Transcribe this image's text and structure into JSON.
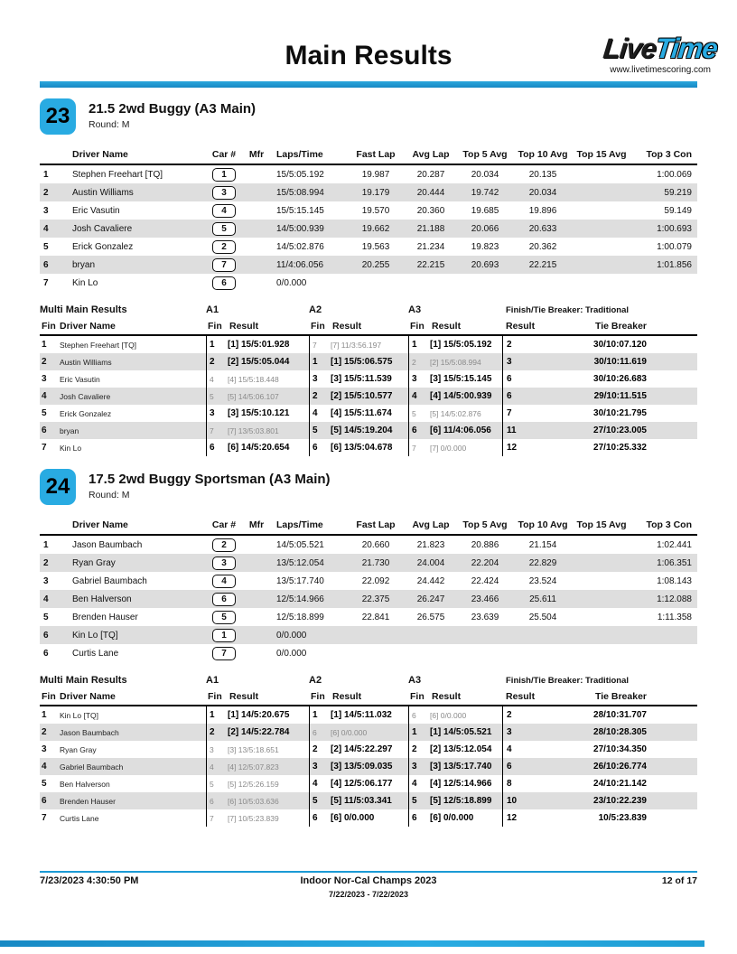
{
  "header": {
    "title": "Main Results",
    "logo_live": "Live",
    "logo_time": "Time",
    "logo_url": "www.livetimescoring.com"
  },
  "main_headers": {
    "driver": "Driver Name",
    "car": "Car #",
    "mfr": "Mfr",
    "laps": "Laps/Time",
    "fast": "Fast Lap",
    "avg": "Avg Lap",
    "top5": "Top 5 Avg",
    "top10": "Top 10 Avg",
    "top15": "Top 15 Avg",
    "top3": "Top 3 Con"
  },
  "multi_headers": {
    "title": "Multi Main Results",
    "a1": "A1",
    "a2": "A2",
    "a3": "A3",
    "tie_label": "Finish/Tie Breaker: Traditional",
    "fin": "Fin",
    "driver": "Driver Name",
    "result": "Result",
    "tie": "Tie Breaker"
  },
  "colors": {
    "accent_bar": "#1B9AD5",
    "race_badge": "#29ABE2",
    "row_stripe": "#DEDEDE"
  },
  "races": [
    {
      "number": "23",
      "title": "21.5 2wd Buggy (A3 Main)",
      "round": "Round: M",
      "main_rows": [
        {
          "pos": "1",
          "driver": "Stephen Freehart [TQ]",
          "car": "1",
          "mfr": "",
          "laps": "15/5:05.192",
          "fast": "19.987",
          "avg": "20.287",
          "top5": "20.034",
          "top10": "20.135",
          "top15": "",
          "top3": "1:00.069"
        },
        {
          "pos": "2",
          "driver": "Austin Williams",
          "car": "3",
          "mfr": "",
          "laps": "15/5:08.994",
          "fast": "19.179",
          "avg": "20.444",
          "top5": "19.742",
          "top10": "20.034",
          "top15": "",
          "top3": "59.219"
        },
        {
          "pos": "3",
          "driver": "Eric Vasutin",
          "car": "4",
          "mfr": "",
          "laps": "15/5:15.145",
          "fast": "19.570",
          "avg": "20.360",
          "top5": "19.685",
          "top10": "19.896",
          "top15": "",
          "top3": "59.149"
        },
        {
          "pos": "4",
          "driver": "Josh Cavaliere",
          "car": "5",
          "mfr": "",
          "laps": "14/5:00.939",
          "fast": "19.662",
          "avg": "21.188",
          "top5": "20.066",
          "top10": "20.633",
          "top15": "",
          "top3": "1:00.693"
        },
        {
          "pos": "5",
          "driver": "Erick Gonzalez",
          "car": "2",
          "mfr": "",
          "laps": "14/5:02.876",
          "fast": "19.563",
          "avg": "21.234",
          "top5": "19.823",
          "top10": "20.362",
          "top15": "",
          "top3": "1:00.079"
        },
        {
          "pos": "6",
          "driver": "bryan",
          "car": "7",
          "mfr": "",
          "laps": "11/4:06.056",
          "fast": "20.255",
          "avg": "22.215",
          "top5": "20.693",
          "top10": "22.215",
          "top15": "",
          "top3": "1:01.856"
        },
        {
          "pos": "7",
          "driver": "Kin Lo",
          "car": "6",
          "mfr": "",
          "laps": "0/0.000",
          "fast": "",
          "avg": "",
          "top5": "",
          "top10": "",
          "top15": "",
          "top3": ""
        }
      ],
      "multi_rows": [
        {
          "fin": "1",
          "driver": "Stephen Freehart [TQ]",
          "a": [
            {
              "fin": "1",
              "result": "[1] 15/5:01.928",
              "counted": true
            },
            {
              "fin": "7",
              "result": "[7] 11/3:56.197",
              "counted": false
            },
            {
              "fin": "1",
              "result": "[1] 15/5:05.192",
              "counted": true
            }
          ],
          "result": "2",
          "tie": "30/10:07.120"
        },
        {
          "fin": "2",
          "driver": "Austin Williams",
          "a": [
            {
              "fin": "2",
              "result": "[2] 15/5:05.044",
              "counted": true
            },
            {
              "fin": "1",
              "result": "[1] 15/5:06.575",
              "counted": true
            },
            {
              "fin": "2",
              "result": "[2] 15/5:08.994",
              "counted": false
            }
          ],
          "result": "3",
          "tie": "30/10:11.619"
        },
        {
          "fin": "3",
          "driver": "Eric Vasutin",
          "a": [
            {
              "fin": "4",
              "result": "[4] 15/5:18.448",
              "counted": false
            },
            {
              "fin": "3",
              "result": "[3] 15/5:11.539",
              "counted": true
            },
            {
              "fin": "3",
              "result": "[3] 15/5:15.145",
              "counted": true
            }
          ],
          "result": "6",
          "tie": "30/10:26.683"
        },
        {
          "fin": "4",
          "driver": "Josh Cavaliere",
          "a": [
            {
              "fin": "5",
              "result": "[5] 14/5:06.107",
              "counted": false
            },
            {
              "fin": "2",
              "result": "[2] 15/5:10.577",
              "counted": true
            },
            {
              "fin": "4",
              "result": "[4] 14/5:00.939",
              "counted": true
            }
          ],
          "result": "6",
          "tie": "29/10:11.515"
        },
        {
          "fin": "5",
          "driver": "Erick Gonzalez",
          "a": [
            {
              "fin": "3",
              "result": "[3] 15/5:10.121",
              "counted": true
            },
            {
              "fin": "4",
              "result": "[4] 15/5:11.674",
              "counted": true
            },
            {
              "fin": "5",
              "result": "[5] 14/5:02.876",
              "counted": false
            }
          ],
          "result": "7",
          "tie": "30/10:21.795"
        },
        {
          "fin": "6",
          "driver": "bryan",
          "a": [
            {
              "fin": "7",
              "result": "[7] 13/5:03.801",
              "counted": false
            },
            {
              "fin": "5",
              "result": "[5] 14/5:19.204",
              "counted": true
            },
            {
              "fin": "6",
              "result": "[6] 11/4:06.056",
              "counted": true
            }
          ],
          "result": "11",
          "tie": "27/10:23.005"
        },
        {
          "fin": "7",
          "driver": "Kin Lo",
          "a": [
            {
              "fin": "6",
              "result": "[6] 14/5:20.654",
              "counted": true
            },
            {
              "fin": "6",
              "result": "[6] 13/5:04.678",
              "counted": true
            },
            {
              "fin": "7",
              "result": "[7] 0/0.000",
              "counted": false
            }
          ],
          "result": "12",
          "tie": "27/10:25.332"
        }
      ]
    },
    {
      "number": "24",
      "title": "17.5 2wd Buggy Sportsman  (A3 Main)",
      "round": "Round: M",
      "main_rows": [
        {
          "pos": "1",
          "driver": "Jason Baumbach",
          "car": "2",
          "mfr": "",
          "laps": "14/5:05.521",
          "fast": "20.660",
          "avg": "21.823",
          "top5": "20.886",
          "top10": "21.154",
          "top15": "",
          "top3": "1:02.441"
        },
        {
          "pos": "2",
          "driver": "Ryan Gray",
          "car": "3",
          "mfr": "",
          "laps": "13/5:12.054",
          "fast": "21.730",
          "avg": "24.004",
          "top5": "22.204",
          "top10": "22.829",
          "top15": "",
          "top3": "1:06.351"
        },
        {
          "pos": "3",
          "driver": "Gabriel Baumbach",
          "car": "4",
          "mfr": "",
          "laps": "13/5:17.740",
          "fast": "22.092",
          "avg": "24.442",
          "top5": "22.424",
          "top10": "23.524",
          "top15": "",
          "top3": "1:08.143"
        },
        {
          "pos": "4",
          "driver": "Ben Halverson",
          "car": "6",
          "mfr": "",
          "laps": "12/5:14.966",
          "fast": "22.375",
          "avg": "26.247",
          "top5": "23.466",
          "top10": "25.611",
          "top15": "",
          "top3": "1:12.088"
        },
        {
          "pos": "5",
          "driver": "Brenden Hauser",
          "car": "5",
          "mfr": "",
          "laps": "12/5:18.899",
          "fast": "22.841",
          "avg": "26.575",
          "top5": "23.639",
          "top10": "25.504",
          "top15": "",
          "top3": "1:11.358"
        },
        {
          "pos": "6",
          "driver": "Kin Lo [TQ]",
          "car": "1",
          "mfr": "",
          "laps": "0/0.000",
          "fast": "",
          "avg": "",
          "top5": "",
          "top10": "",
          "top15": "",
          "top3": ""
        },
        {
          "pos": "6",
          "driver": "Curtis Lane",
          "car": "7",
          "mfr": "",
          "laps": "0/0.000",
          "fast": "",
          "avg": "",
          "top5": "",
          "top10": "",
          "top15": "",
          "top3": ""
        }
      ],
      "multi_rows": [
        {
          "fin": "1",
          "driver": "Kin Lo [TQ]",
          "a": [
            {
              "fin": "1",
              "result": "[1] 14/5:20.675",
              "counted": true
            },
            {
              "fin": "1",
              "result": "[1] 14/5:11.032",
              "counted": true
            },
            {
              "fin": "6",
              "result": "[6] 0/0.000",
              "counted": false
            }
          ],
          "result": "2",
          "tie": "28/10:31.707"
        },
        {
          "fin": "2",
          "driver": "Jason Baumbach",
          "a": [
            {
              "fin": "2",
              "result": "[2] 14/5:22.784",
              "counted": true
            },
            {
              "fin": "6",
              "result": "[6] 0/0.000",
              "counted": false
            },
            {
              "fin": "1",
              "result": "[1] 14/5:05.521",
              "counted": true
            }
          ],
          "result": "3",
          "tie": "28/10:28.305"
        },
        {
          "fin": "3",
          "driver": "Ryan Gray",
          "a": [
            {
              "fin": "3",
              "result": "[3] 13/5:18.651",
              "counted": false
            },
            {
              "fin": "2",
              "result": "[2] 14/5:22.297",
              "counted": true
            },
            {
              "fin": "2",
              "result": "[2] 13/5:12.054",
              "counted": true
            }
          ],
          "result": "4",
          "tie": "27/10:34.350"
        },
        {
          "fin": "4",
          "driver": "Gabriel Baumbach",
          "a": [
            {
              "fin": "4",
              "result": "[4] 12/5:07.823",
              "counted": false
            },
            {
              "fin": "3",
              "result": "[3] 13/5:09.035",
              "counted": true
            },
            {
              "fin": "3",
              "result": "[3] 13/5:17.740",
              "counted": true
            }
          ],
          "result": "6",
          "tie": "26/10:26.774"
        },
        {
          "fin": "5",
          "driver": "Ben Halverson",
          "a": [
            {
              "fin": "5",
              "result": "[5] 12/5:26.159",
              "counted": false
            },
            {
              "fin": "4",
              "result": "[4] 12/5:06.177",
              "counted": true
            },
            {
              "fin": "4",
              "result": "[4] 12/5:14.966",
              "counted": true
            }
          ],
          "result": "8",
          "tie": "24/10:21.142"
        },
        {
          "fin": "6",
          "driver": "Brenden Hauser",
          "a": [
            {
              "fin": "6",
              "result": "[6] 10/5:03.636",
              "counted": false
            },
            {
              "fin": "5",
              "result": "[5] 11/5:03.341",
              "counted": true
            },
            {
              "fin": "5",
              "result": "[5] 12/5:18.899",
              "counted": true
            }
          ],
          "result": "10",
          "tie": "23/10:22.239"
        },
        {
          "fin": "7",
          "driver": "Curtis Lane",
          "a": [
            {
              "fin": "7",
              "result": "[7] 10/5:23.839",
              "counted": false
            },
            {
              "fin": "6",
              "result": "[6] 0/0.000",
              "counted": true
            },
            {
              "fin": "6",
              "result": "[6] 0/0.000",
              "counted": true
            }
          ],
          "result": "12",
          "tie": "10/5:23.839"
        }
      ]
    }
  ],
  "footer": {
    "printed": "7/23/2023 4:30:50 PM",
    "event": "Indoor Nor-Cal Champs 2023",
    "event_dates": "7/22/2023 - 7/22/2023",
    "page": "12 of 17"
  }
}
